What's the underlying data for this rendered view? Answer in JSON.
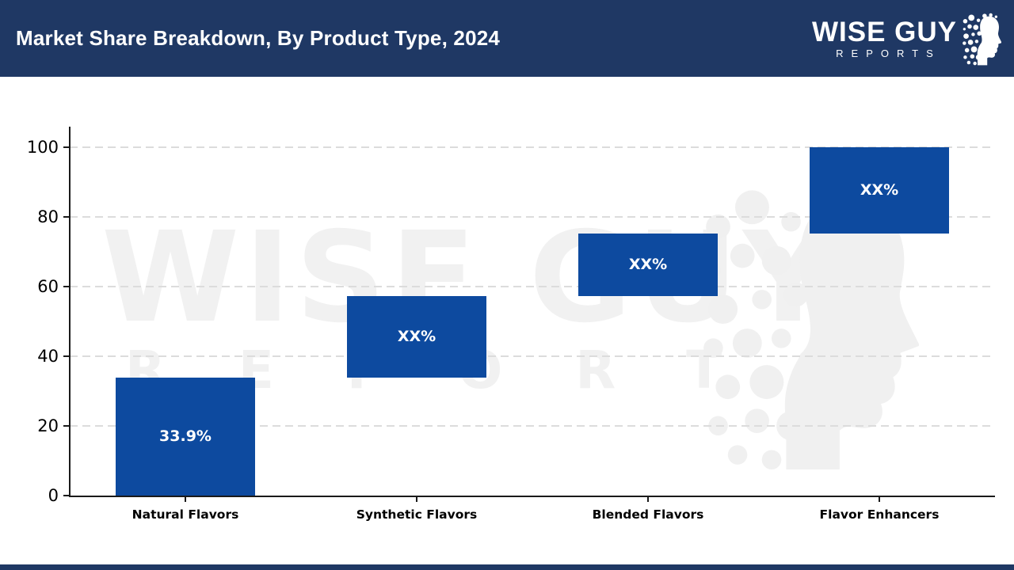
{
  "header": {
    "title": "Market Share Breakdown, By Product Type, 2024",
    "logo": {
      "line1": "WISE GUY",
      "line2": "REPORTS"
    }
  },
  "watermark": {
    "line1": "WISE GUY",
    "line2": "REPORTS"
  },
  "chart_data": {
    "type": "bar",
    "subtype": "floating-segment-waterfall",
    "title": "Market Share Breakdown, By Product Type, 2024",
    "categories": [
      "Natural Flavors",
      "Synthetic Flavors",
      "Blended Flavors",
      "Flavor Enhancers"
    ],
    "bars": [
      {
        "category": "Natural Flavors",
        "start": 0,
        "end": 33.9,
        "label": "33.9%"
      },
      {
        "category": "Synthetic Flavors",
        "start": 33.9,
        "end": 57.3,
        "label": "XX%"
      },
      {
        "category": "Blended Flavors",
        "start": 57.3,
        "end": 75.3,
        "label": "XX%"
      },
      {
        "category": "Flavor Enhancers",
        "start": 75.3,
        "end": 100,
        "label": "XX%"
      }
    ],
    "yticks": [
      0,
      20,
      40,
      60,
      80,
      100
    ],
    "ylim": [
      0,
      106
    ],
    "xlabel": "",
    "ylabel": "",
    "grid": "horizontal-dashed",
    "legend": "none",
    "colors": {
      "bar": "#0d4a9f",
      "bar_label": "#ffffff",
      "axis": "#1a1a1a",
      "gridline": "#dcdcdc",
      "header_bg": "#1f3864",
      "watermark": "#f1f1f1"
    }
  }
}
